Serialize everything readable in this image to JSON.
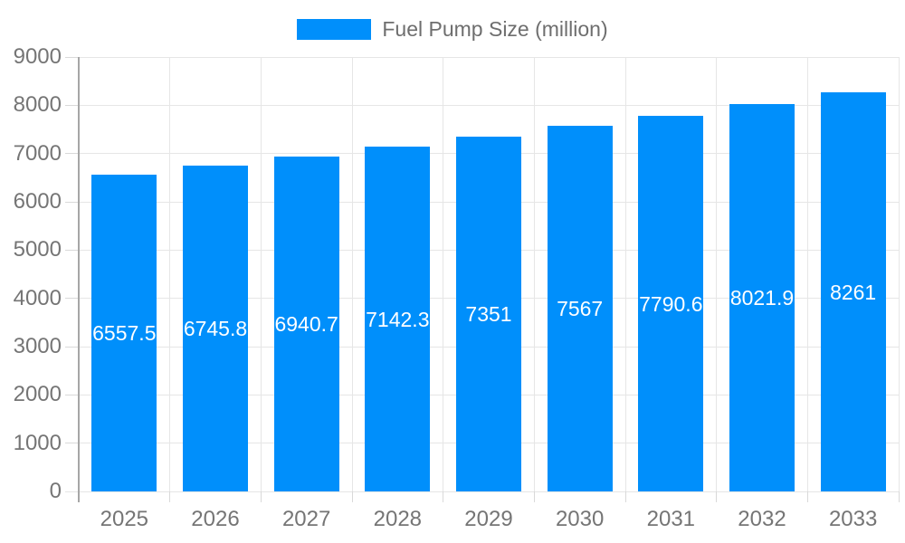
{
  "chart_data": {
    "type": "bar",
    "title": "",
    "legend": {
      "label": "Fuel Pump Size (million)",
      "position": "top"
    },
    "categories": [
      "2025",
      "2026",
      "2027",
      "2028",
      "2029",
      "2030",
      "2031",
      "2032",
      "2033"
    ],
    "series": [
      {
        "name": "Fuel Pump Size (million)",
        "values": [
          6557.5,
          6745.8,
          6940.7,
          7142.3,
          7351,
          7567,
          7790.6,
          8021.9,
          8261
        ]
      }
    ],
    "value_labels": [
      "6557.5",
      "6745.8",
      "6940.7",
      "7142.3",
      "7351",
      "7567",
      "7790.6",
      "8021.9",
      "8261"
    ],
    "xlabel": "",
    "ylabel": "",
    "ylim": [
      0,
      9000
    ],
    "y_ticks": [
      0,
      1000,
      2000,
      3000,
      4000,
      5000,
      6000,
      7000,
      8000,
      9000
    ],
    "grid": "both",
    "colors": {
      "bar": "#008FFB",
      "grid": "#e6e6e6",
      "tick": "#d9d9d9",
      "axis_line": "#a6a6a6",
      "axis_text": "#757575",
      "legend_text": "#6e6e6e",
      "value_text": "#ffffff",
      "background": "#ffffff"
    }
  }
}
